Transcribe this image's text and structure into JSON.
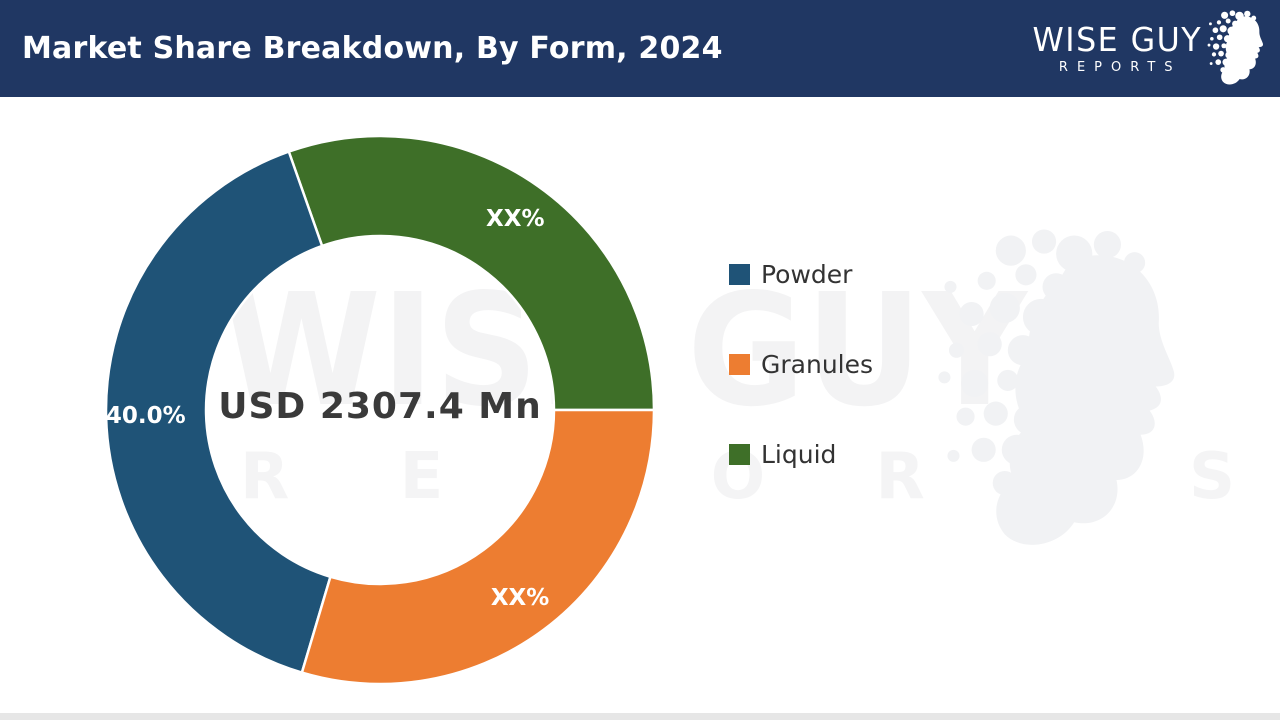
{
  "header": {
    "title": "Market Share Breakdown, By Form, 2024",
    "bg_color": "#203763",
    "logo": {
      "line1": "WISE GUY",
      "line2": "REPORTS"
    }
  },
  "chart_data": {
    "type": "donut",
    "title": "Market Share Breakdown, By Form, 2024",
    "center_label": "USD 2307.4 Mn",
    "start_angle_deg": 0,
    "direction": "ccw",
    "inner_radius_ratio": 0.635,
    "label_radius_ratio": 0.855,
    "legend_position": "right",
    "segments": [
      {
        "name": "Liquid",
        "value": 30.4,
        "label": "XX%",
        "color": "#3E6F28"
      },
      {
        "name": "Powder",
        "value": 40.0,
        "label": "40.0%",
        "color": "#1F5377"
      },
      {
        "name": "Granules",
        "value": 29.6,
        "label": "XX%",
        "color": "#ED7D31"
      }
    ]
  },
  "legend": {
    "items": [
      {
        "label": "Powder",
        "color": "#1F5377"
      },
      {
        "label": "Granules",
        "color": "#ED7D31"
      },
      {
        "label": "Liquid",
        "color": "#3E6F28"
      }
    ]
  },
  "watermark": {
    "line1": "WISE GUY",
    "line2": "R E P O R T S"
  },
  "colors": {
    "header_bg": "#203763",
    "center_text": "#3a3a3a",
    "slice_border": "#ffffff",
    "watermark": "#f3f3f4",
    "bottom_strip": "#e6e6e6"
  }
}
